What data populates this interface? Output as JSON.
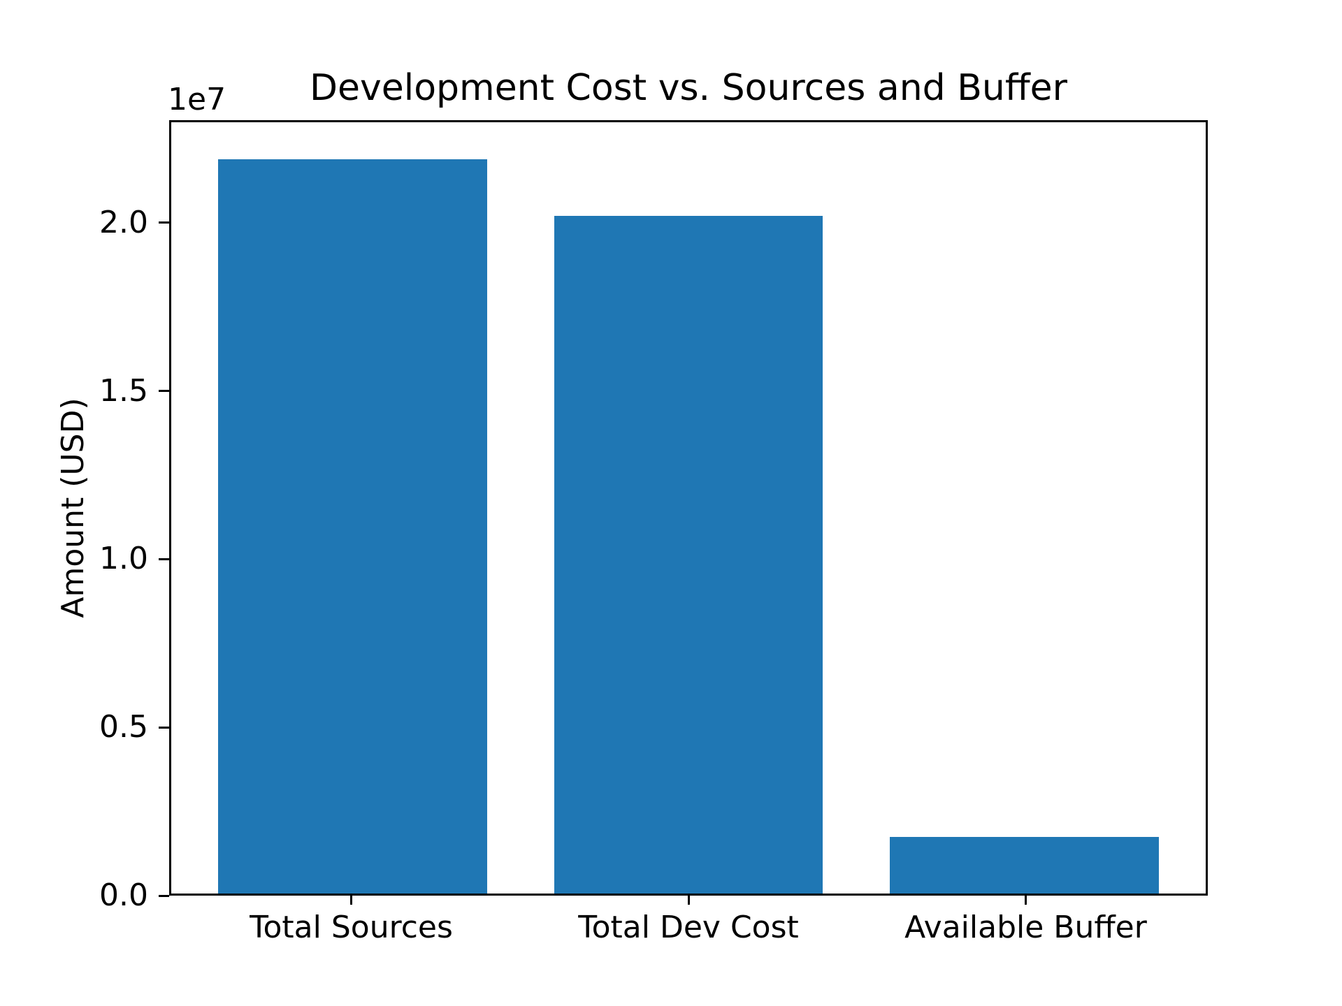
{
  "chart_data": {
    "type": "bar",
    "title": "Development Cost vs. Sources and Buffer",
    "ylabel": "Amount (USD)",
    "xlabel": "",
    "categories": [
      "Total Sources",
      "Total Dev Cost",
      "Available Buffer"
    ],
    "values": [
      21950000,
      20250000,
      1700000
    ],
    "bar_color": "#1f77b4",
    "bar_width": 0.8,
    "xlim": [
      -0.54,
      2.54
    ],
    "ylim": [
      0,
      23047500
    ],
    "yticks": [
      0,
      5000000,
      10000000,
      15000000,
      20000000
    ],
    "ytick_labels": [
      "0.0",
      "0.5",
      "1.0",
      "1.5",
      "2.0"
    ],
    "y_offset_text": "1e7",
    "grid": false,
    "legend": null,
    "axis_color": "#000000",
    "background_color": "#ffffff"
  }
}
